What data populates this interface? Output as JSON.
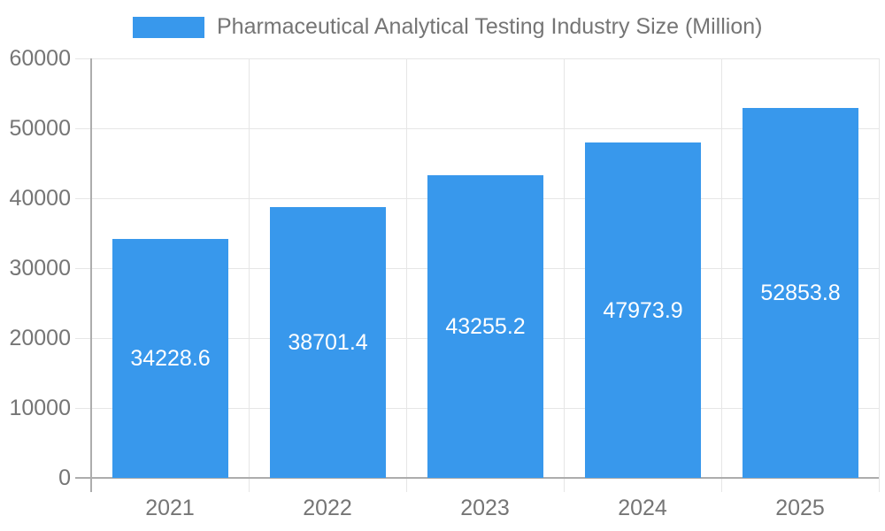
{
  "legend": {
    "series_label": "Pharmaceutical Analytical Testing Industry Size (Million)",
    "swatch_color": "#3898ec"
  },
  "chart_data": {
    "type": "bar",
    "title": "Pharmaceutical Analytical Testing Industry Size (Million)",
    "categories": [
      "2021",
      "2022",
      "2023",
      "2024",
      "2025"
    ],
    "values": [
      34228.6,
      38701.4,
      43255.2,
      47973.9,
      52853.8
    ],
    "value_labels": [
      "34228.6",
      "38701.4",
      "43255.2",
      "47973.9",
      "52853.8"
    ],
    "series": [
      {
        "name": "Pharmaceutical Analytical Testing Industry Size (Million)",
        "values": [
          34228.6,
          38701.4,
          43255.2,
          47973.9,
          52853.8
        ]
      }
    ],
    "xlabel": "",
    "ylabel": "",
    "ylim": [
      0,
      60000
    ],
    "ytick_step": 10000,
    "yticks": [
      0,
      10000,
      20000,
      30000,
      40000,
      50000,
      60000
    ],
    "grid": true,
    "legend_position": "top",
    "value_label_position": "inside-center",
    "colors": {
      "bar": "#3898ec",
      "value_label_text": "#ffffff",
      "axis_text": "#757575",
      "axis_line": "#adadad",
      "gridline": "#e6e6e6"
    }
  }
}
